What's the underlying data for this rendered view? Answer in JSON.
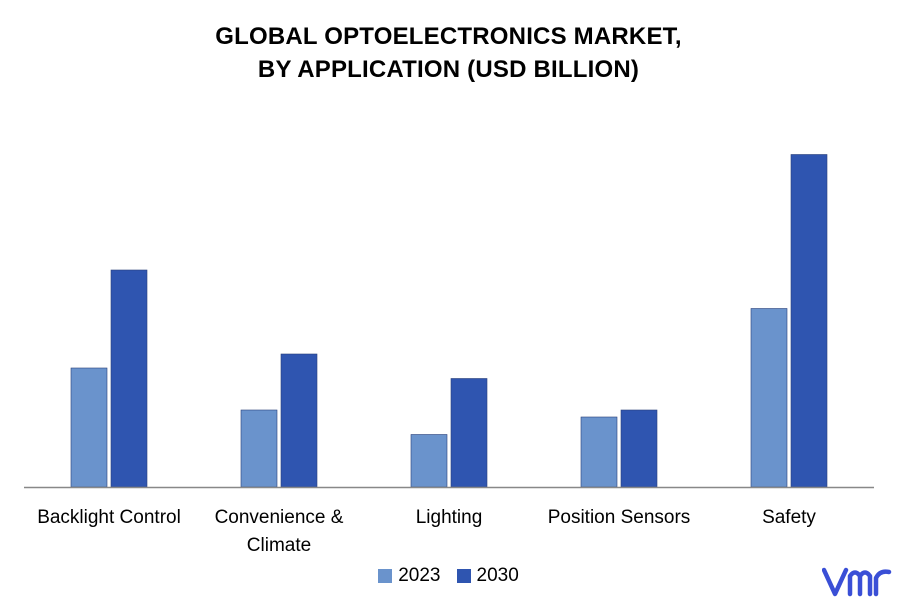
{
  "title_line1": "GLOBAL OPTOELECTRONICS MARKET,",
  "title_line2": "BY APPLICATION (USD BILLION)",
  "logo_text": "vmr",
  "colors": {
    "s2023": "#6a93cc",
    "s2030": "#2f55b0",
    "axis": "#888888",
    "logo": "#3a4fd6"
  },
  "chart_data": {
    "type": "bar",
    "categories": [
      [
        "Backlight Control"
      ],
      [
        "Convenience &",
        "Climate"
      ],
      [
        "Lighting"
      ],
      [
        "Position Sensors"
      ],
      [
        "Safety"
      ]
    ],
    "series": [
      {
        "name": "2023",
        "values": [
          3.4,
          2.2,
          1.5,
          2.0,
          5.1
        ]
      },
      {
        "name": "2030",
        "values": [
          6.2,
          3.8,
          3.1,
          2.2,
          9.5
        ]
      }
    ],
    "ylim": [
      0,
      10
    ],
    "grid": false,
    "legend": "bottom"
  }
}
